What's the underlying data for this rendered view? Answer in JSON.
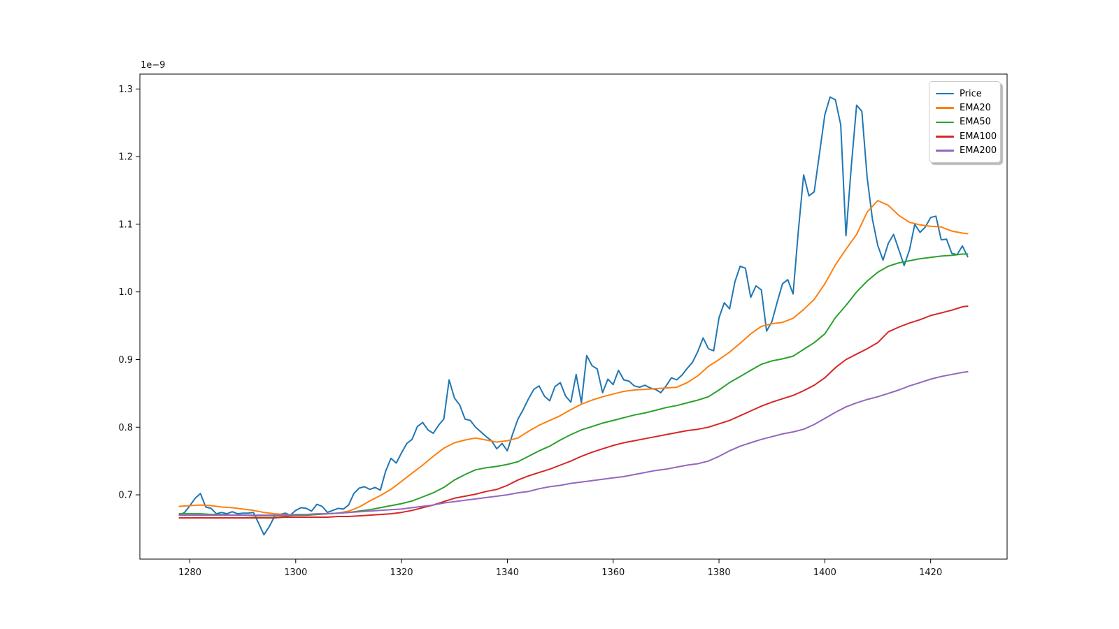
{
  "figure": {
    "background": "#ffffff",
    "axis_color": "#000000"
  },
  "chart_data": {
    "type": "line",
    "title": "",
    "xlabel": "",
    "ylabel": "",
    "y_offset_label": "1e−9",
    "xlim": [
      1270.55,
      1434.45
    ],
    "ylim": [
      0.605,
      1.322
    ],
    "x_ticks": [
      1280,
      1300,
      1320,
      1340,
      1360,
      1380,
      1400,
      1420
    ],
    "y_ticks": [
      0.7,
      0.8,
      0.9,
      1.0,
      1.1,
      1.2,
      1.3
    ],
    "grid": false,
    "legend": {
      "location": "upper right"
    },
    "series": [
      {
        "name": "Price",
        "color": "#1f77b4",
        "x": [
          1278,
          1279,
          1280,
          1281,
          1282,
          1283,
          1284,
          1285,
          1286,
          1287,
          1288,
          1289,
          1290,
          1291,
          1292,
          1293,
          1294,
          1295,
          1296,
          1297,
          1298,
          1299,
          1300,
          1301,
          1302,
          1303,
          1304,
          1305,
          1306,
          1307,
          1308,
          1309,
          1310,
          1311,
          1312,
          1313,
          1314,
          1315,
          1316,
          1317,
          1318,
          1319,
          1320,
          1321,
          1322,
          1323,
          1324,
          1325,
          1326,
          1327,
          1328,
          1329,
          1330,
          1331,
          1332,
          1333,
          1334,
          1335,
          1336,
          1337,
          1338,
          1339,
          1340,
          1341,
          1342,
          1343,
          1344,
          1345,
          1346,
          1347,
          1348,
          1349,
          1350,
          1351,
          1352,
          1353,
          1354,
          1355,
          1356,
          1357,
          1358,
          1359,
          1360,
          1361,
          1362,
          1363,
          1364,
          1365,
          1366,
          1367,
          1368,
          1369,
          1370,
          1371,
          1372,
          1373,
          1374,
          1375,
          1376,
          1377,
          1378,
          1379,
          1380,
          1381,
          1382,
          1383,
          1384,
          1385,
          1386,
          1387,
          1388,
          1389,
          1390,
          1391,
          1392,
          1393,
          1394,
          1395,
          1396,
          1397,
          1398,
          1399,
          1400,
          1401,
          1402,
          1403,
          1404,
          1405,
          1406,
          1407,
          1408,
          1409,
          1410,
          1411,
          1412,
          1413,
          1414,
          1415,
          1416,
          1417,
          1418,
          1419,
          1420,
          1421,
          1422,
          1423,
          1424,
          1425,
          1426,
          1427
        ],
        "y": [
          0.67,
          0.674,
          0.684,
          0.695,
          0.702,
          0.682,
          0.68,
          0.672,
          0.674,
          0.672,
          0.675,
          0.672,
          0.673,
          0.673,
          0.674,
          0.658,
          0.641,
          0.653,
          0.668,
          0.671,
          0.673,
          0.67,
          0.677,
          0.681,
          0.68,
          0.676,
          0.686,
          0.683,
          0.674,
          0.677,
          0.68,
          0.679,
          0.685,
          0.702,
          0.71,
          0.712,
          0.708,
          0.711,
          0.707,
          0.735,
          0.754,
          0.747,
          0.762,
          0.776,
          0.782,
          0.801,
          0.807,
          0.796,
          0.791,
          0.803,
          0.812,
          0.87,
          0.843,
          0.833,
          0.812,
          0.81,
          0.8,
          0.793,
          0.786,
          0.78,
          0.768,
          0.776,
          0.765,
          0.79,
          0.812,
          0.826,
          0.842,
          0.856,
          0.861,
          0.846,
          0.839,
          0.86,
          0.866,
          0.846,
          0.837,
          0.878,
          0.836,
          0.906,
          0.891,
          0.886,
          0.851,
          0.871,
          0.863,
          0.884,
          0.87,
          0.868,
          0.861,
          0.859,
          0.862,
          0.858,
          0.856,
          0.851,
          0.861,
          0.873,
          0.87,
          0.877,
          0.887,
          0.896,
          0.912,
          0.932,
          0.916,
          0.913,
          0.962,
          0.984,
          0.975,
          1.015,
          1.038,
          1.035,
          0.992,
          1.009,
          1.003,
          0.942,
          0.956,
          0.985,
          1.012,
          1.018,
          0.997,
          1.09,
          1.173,
          1.142,
          1.148,
          1.205,
          1.262,
          1.288,
          1.284,
          1.247,
          1.083,
          1.185,
          1.276,
          1.267,
          1.169,
          1.107,
          1.069,
          1.047,
          1.072,
          1.085,
          1.062,
          1.039,
          1.062,
          1.1,
          1.088,
          1.096,
          1.11,
          1.112,
          1.077,
          1.078,
          1.057,
          1.055,
          1.068,
          1.052
        ]
      },
      {
        "name": "EMA20",
        "color": "#ff7f0e",
        "x": [
          1278,
          1280,
          1282,
          1284,
          1286,
          1288,
          1290,
          1292,
          1294,
          1296,
          1298,
          1300,
          1302,
          1304,
          1306,
          1308,
          1310,
          1312,
          1314,
          1316,
          1318,
          1320,
          1322,
          1324,
          1326,
          1328,
          1330,
          1332,
          1334,
          1336,
          1338,
          1340,
          1342,
          1344,
          1346,
          1348,
          1350,
          1352,
          1354,
          1356,
          1358,
          1360,
          1362,
          1364,
          1366,
          1368,
          1370,
          1372,
          1374,
          1376,
          1378,
          1380,
          1382,
          1384,
          1386,
          1388,
          1390,
          1392,
          1394,
          1396,
          1398,
          1400,
          1402,
          1404,
          1406,
          1408,
          1410,
          1412,
          1414,
          1416,
          1418,
          1420,
          1422,
          1424,
          1426,
          1427
        ],
        "y": [
          0.683,
          0.684,
          0.685,
          0.684,
          0.682,
          0.681,
          0.679,
          0.677,
          0.674,
          0.672,
          0.671,
          0.67,
          0.67,
          0.671,
          0.672,
          0.673,
          0.676,
          0.682,
          0.691,
          0.699,
          0.708,
          0.72,
          0.732,
          0.744,
          0.757,
          0.769,
          0.777,
          0.781,
          0.784,
          0.781,
          0.778,
          0.78,
          0.784,
          0.794,
          0.803,
          0.81,
          0.817,
          0.826,
          0.834,
          0.84,
          0.845,
          0.849,
          0.853,
          0.855,
          0.856,
          0.857,
          0.858,
          0.859,
          0.866,
          0.876,
          0.89,
          0.9,
          0.911,
          0.924,
          0.938,
          0.949,
          0.953,
          0.955,
          0.961,
          0.974,
          0.989,
          1.012,
          1.04,
          1.063,
          1.085,
          1.118,
          1.135,
          1.128,
          1.113,
          1.103,
          1.099,
          1.097,
          1.096,
          1.09,
          1.087,
          1.086
        ]
      },
      {
        "name": "EMA50",
        "color": "#2ca02c",
        "x": [
          1278,
          1280,
          1282,
          1284,
          1286,
          1288,
          1290,
          1292,
          1294,
          1296,
          1298,
          1300,
          1302,
          1304,
          1306,
          1308,
          1310,
          1312,
          1314,
          1316,
          1318,
          1320,
          1322,
          1324,
          1326,
          1328,
          1330,
          1332,
          1334,
          1336,
          1338,
          1340,
          1342,
          1344,
          1346,
          1348,
          1350,
          1352,
          1354,
          1356,
          1358,
          1360,
          1362,
          1364,
          1366,
          1368,
          1370,
          1372,
          1374,
          1376,
          1378,
          1380,
          1382,
          1384,
          1386,
          1388,
          1390,
          1392,
          1394,
          1396,
          1398,
          1400,
          1402,
          1404,
          1406,
          1408,
          1410,
          1412,
          1414,
          1416,
          1418,
          1420,
          1422,
          1424,
          1426,
          1427
        ],
        "y": [
          0.672,
          0.672,
          0.672,
          0.671,
          0.671,
          0.67,
          0.67,
          0.669,
          0.669,
          0.669,
          0.669,
          0.67,
          0.67,
          0.671,
          0.672,
          0.673,
          0.674,
          0.676,
          0.678,
          0.681,
          0.684,
          0.687,
          0.691,
          0.697,
          0.703,
          0.711,
          0.722,
          0.73,
          0.737,
          0.74,
          0.742,
          0.745,
          0.749,
          0.757,
          0.765,
          0.772,
          0.781,
          0.789,
          0.796,
          0.801,
          0.806,
          0.81,
          0.814,
          0.818,
          0.821,
          0.825,
          0.829,
          0.832,
          0.836,
          0.84,
          0.845,
          0.855,
          0.866,
          0.875,
          0.884,
          0.893,
          0.898,
          0.901,
          0.905,
          0.915,
          0.925,
          0.938,
          0.962,
          0.98,
          1.0,
          1.016,
          1.029,
          1.038,
          1.043,
          1.046,
          1.049,
          1.051,
          1.053,
          1.054,
          1.056,
          1.056
        ]
      },
      {
        "name": "EMA100",
        "color": "#d62728",
        "x": [
          1278,
          1280,
          1282,
          1284,
          1286,
          1288,
          1290,
          1292,
          1294,
          1296,
          1298,
          1300,
          1302,
          1304,
          1306,
          1308,
          1310,
          1312,
          1314,
          1316,
          1318,
          1320,
          1322,
          1324,
          1326,
          1328,
          1330,
          1332,
          1334,
          1336,
          1338,
          1340,
          1342,
          1344,
          1346,
          1348,
          1350,
          1352,
          1354,
          1356,
          1358,
          1360,
          1362,
          1364,
          1366,
          1368,
          1370,
          1372,
          1374,
          1376,
          1378,
          1380,
          1382,
          1384,
          1386,
          1388,
          1390,
          1392,
          1394,
          1396,
          1398,
          1400,
          1402,
          1404,
          1406,
          1408,
          1410,
          1412,
          1414,
          1416,
          1418,
          1420,
          1422,
          1424,
          1426,
          1427
        ],
        "y": [
          0.666,
          0.666,
          0.666,
          0.666,
          0.666,
          0.666,
          0.666,
          0.666,
          0.666,
          0.666,
          0.667,
          0.667,
          0.667,
          0.667,
          0.667,
          0.668,
          0.668,
          0.669,
          0.67,
          0.671,
          0.672,
          0.674,
          0.677,
          0.681,
          0.685,
          0.69,
          0.695,
          0.698,
          0.701,
          0.705,
          0.708,
          0.714,
          0.722,
          0.728,
          0.733,
          0.738,
          0.744,
          0.75,
          0.757,
          0.763,
          0.768,
          0.773,
          0.777,
          0.78,
          0.783,
          0.786,
          0.789,
          0.792,
          0.795,
          0.797,
          0.8,
          0.805,
          0.81,
          0.817,
          0.824,
          0.831,
          0.837,
          0.842,
          0.847,
          0.854,
          0.862,
          0.873,
          0.888,
          0.9,
          0.908,
          0.916,
          0.925,
          0.941,
          0.948,
          0.954,
          0.959,
          0.965,
          0.969,
          0.973,
          0.978,
          0.979
        ]
      },
      {
        "name": "EMA200",
        "color": "#9467bd",
        "x": [
          1278,
          1280,
          1282,
          1284,
          1286,
          1288,
          1290,
          1292,
          1294,
          1296,
          1298,
          1300,
          1302,
          1304,
          1306,
          1308,
          1310,
          1312,
          1314,
          1316,
          1318,
          1320,
          1322,
          1324,
          1326,
          1328,
          1330,
          1332,
          1334,
          1336,
          1338,
          1340,
          1342,
          1344,
          1346,
          1348,
          1350,
          1352,
          1354,
          1356,
          1358,
          1360,
          1362,
          1364,
          1366,
          1368,
          1370,
          1372,
          1374,
          1376,
          1378,
          1380,
          1382,
          1384,
          1386,
          1388,
          1390,
          1392,
          1394,
          1396,
          1398,
          1400,
          1402,
          1404,
          1406,
          1408,
          1410,
          1412,
          1414,
          1416,
          1418,
          1420,
          1422,
          1424,
          1426,
          1427
        ],
        "y": [
          0.67,
          0.67,
          0.67,
          0.67,
          0.67,
          0.67,
          0.67,
          0.67,
          0.67,
          0.67,
          0.67,
          0.671,
          0.671,
          0.672,
          0.672,
          0.673,
          0.674,
          0.675,
          0.676,
          0.677,
          0.678,
          0.679,
          0.681,
          0.683,
          0.685,
          0.688,
          0.69,
          0.692,
          0.694,
          0.696,
          0.698,
          0.7,
          0.703,
          0.705,
          0.709,
          0.712,
          0.714,
          0.717,
          0.719,
          0.721,
          0.723,
          0.725,
          0.727,
          0.73,
          0.733,
          0.736,
          0.738,
          0.741,
          0.744,
          0.746,
          0.75,
          0.757,
          0.765,
          0.772,
          0.777,
          0.782,
          0.786,
          0.79,
          0.793,
          0.797,
          0.804,
          0.813,
          0.822,
          0.83,
          0.836,
          0.841,
          0.845,
          0.85,
          0.855,
          0.861,
          0.866,
          0.871,
          0.875,
          0.878,
          0.881,
          0.882
        ]
      }
    ]
  }
}
